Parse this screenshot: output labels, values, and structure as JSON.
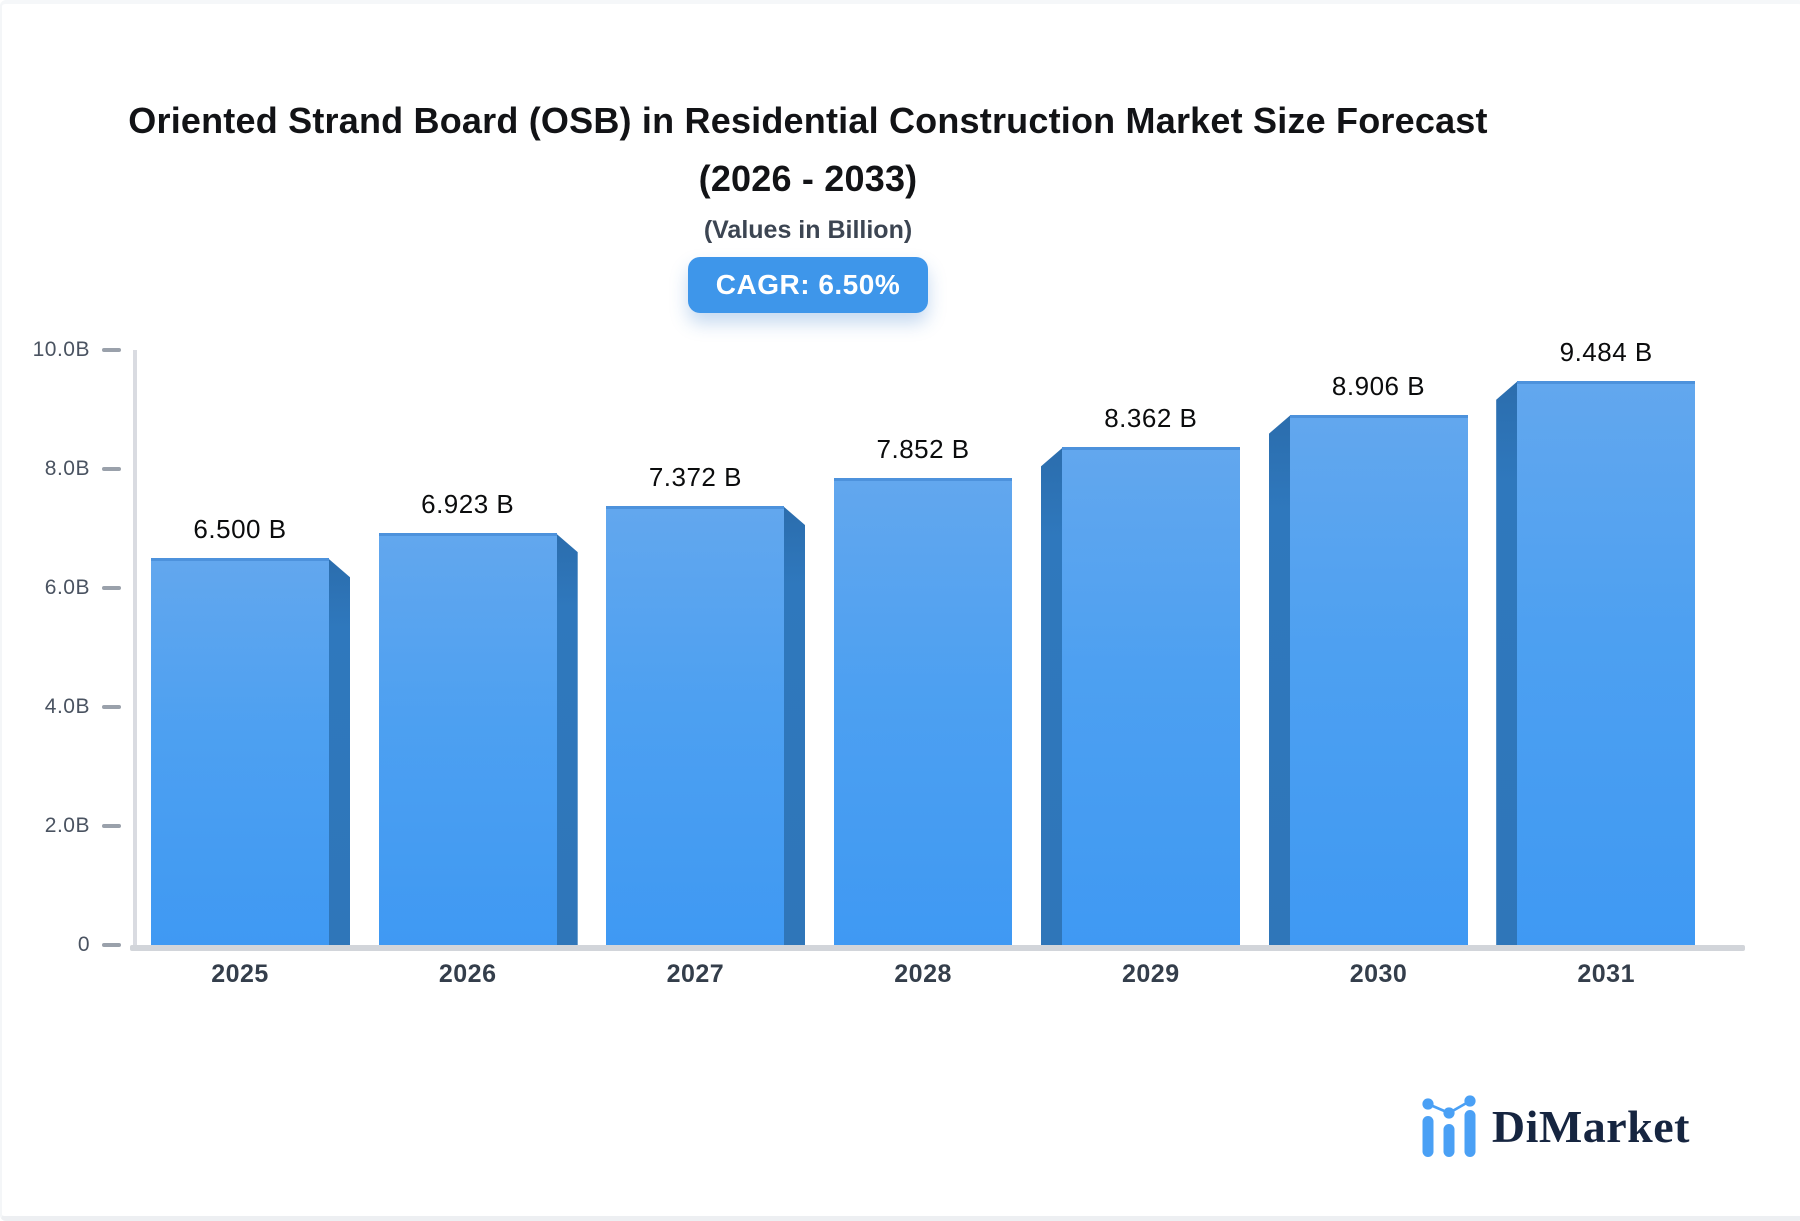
{
  "header": {
    "title_line1": "Oriented Strand Board (OSB) in Residential Construction Market Size Forecast",
    "title_line2": "(2026 - 2033)",
    "subtitle": "(Values in Billion)",
    "cagr_badge": "CAGR: 6.50%"
  },
  "chart_data": {
    "type": "bar",
    "title": "Oriented Strand Board (OSB) in Residential Construction Market Size Forecast (2026 - 2033)",
    "subtitle": "(Values in Billion)",
    "annotation": "CAGR: 6.50%",
    "categories": [
      "2025",
      "2026",
      "2027",
      "2028",
      "2029",
      "2030",
      "2031"
    ],
    "values": [
      6.5,
      6.923,
      7.372,
      7.852,
      8.362,
      8.906,
      9.484
    ],
    "value_labels": [
      "6.500 B",
      "6.923 B",
      "7.372 B",
      "7.852 B",
      "8.362 B",
      "8.906 B",
      "9.484 B"
    ],
    "unit": "Billion",
    "ylim": [
      0,
      10
    ],
    "yticks": [
      {
        "value": 0,
        "label": "0"
      },
      {
        "value": 2,
        "label": "2.0B"
      },
      {
        "value": 4,
        "label": "4.0B"
      },
      {
        "value": 6,
        "label": "6.0B"
      },
      {
        "value": 8,
        "label": "8.0B"
      },
      {
        "value": 10,
        "label": "10.0B"
      }
    ],
    "grid": false,
    "legend": "none",
    "colors": {
      "bar_face_top": "#62a7ee",
      "bar_face_bottom": "#3f99f3",
      "bar_side": "#2f76b9",
      "bar_top_edge": "#4d92dc",
      "badge": "#3e96ea",
      "axis": "#d9dbe1",
      "baseline": "#d2d5da"
    }
  },
  "branding": {
    "name": "DiMarket",
    "icon": "bar-line-chart-icon",
    "icon_color": "#4aa0f5",
    "text_color": "#162540"
  }
}
